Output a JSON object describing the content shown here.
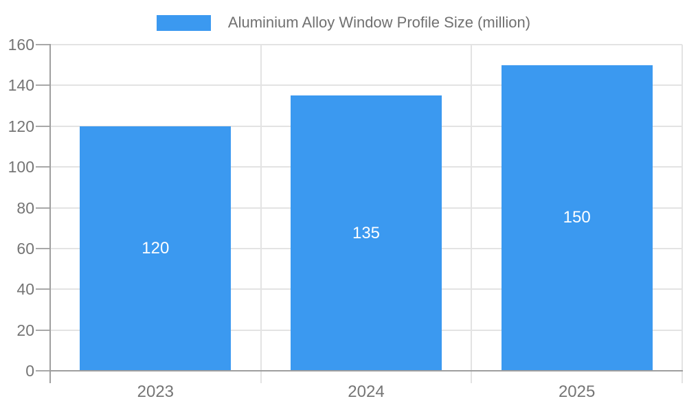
{
  "legend": {
    "label": "Aluminium Alloy Window Profile Size (million)"
  },
  "chart_data": {
    "type": "bar",
    "title": "",
    "legend": "Aluminium Alloy Window Profile Size (million)",
    "legend_position": "top-center",
    "categories": [
      "2023",
      "2024",
      "2025"
    ],
    "series": [
      {
        "name": "Aluminium Alloy Window Profile Size (million)",
        "values": [
          120,
          135,
          150
        ]
      }
    ],
    "data_labels": [
      "120",
      "135",
      "150"
    ],
    "xlabel": "",
    "ylabel": "",
    "ylim": [
      0,
      160
    ],
    "ytick_step": 20,
    "yticks": [
      0,
      20,
      40,
      60,
      80,
      100,
      120,
      140,
      160
    ],
    "grid": "on",
    "colors": {
      "bar": "#3b99f0",
      "data_label": "#ffffff",
      "axis_line": "#9e9e9e",
      "tick_mark": "#a8a8a8",
      "gridline": "#e3e3e3",
      "tick_label": "#757575",
      "legend_text": "#707070",
      "background": "#ffffff"
    }
  }
}
